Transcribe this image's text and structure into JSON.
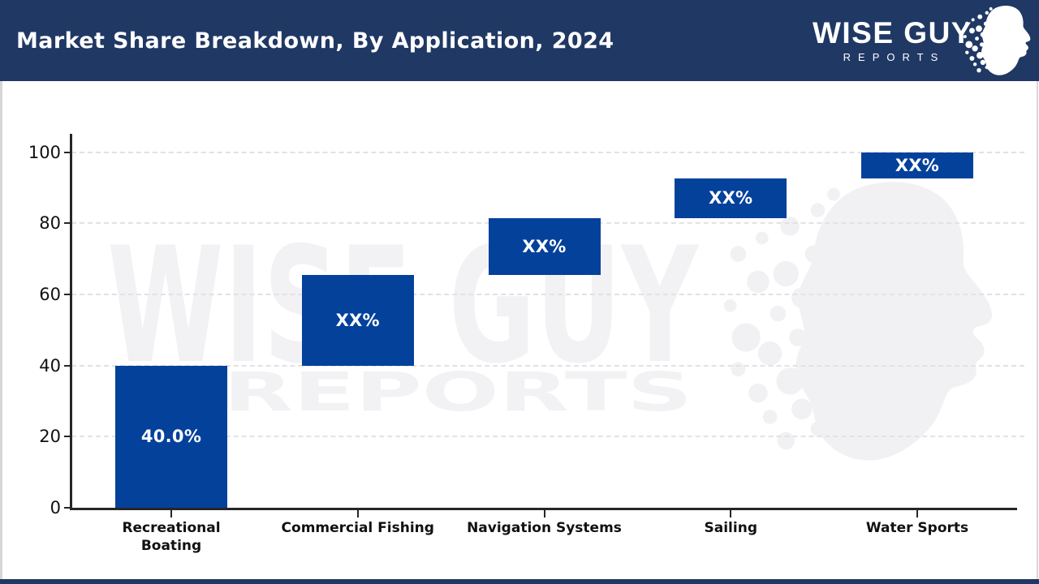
{
  "header": {
    "title": "Market Share Breakdown, By Application, 2024",
    "logo": {
      "line1": "WISE GUY",
      "line2": "REPORTS"
    }
  },
  "watermark": {
    "line1": "WISE GUY",
    "line2": "REPORTS"
  },
  "colors": {
    "header_bg": "#203864",
    "bar_blue": "#04419b",
    "gridline": "#e2e2e6",
    "watermark_gray": "#f1f1f4",
    "axis": "#262626"
  },
  "chart_data": {
    "type": "bar",
    "subtype": "waterfall",
    "title": "Market Share Breakdown, By Application, 2024",
    "categories": [
      "Recreational\nBoating",
      "Commercial Fishing",
      "Navigation Systems",
      "Sailing",
      "Water Sports"
    ],
    "segments": [
      {
        "category": "Recreational Boating",
        "start": 0,
        "end": 40,
        "value": 40,
        "label": "40.0%"
      },
      {
        "category": "Commercial Fishing",
        "start": 40,
        "end": 65.5,
        "value": 25.5,
        "label": "XX%"
      },
      {
        "category": "Navigation Systems",
        "start": 65.5,
        "end": 81.5,
        "value": 16,
        "label": "XX%"
      },
      {
        "category": "Sailing",
        "start": 81.5,
        "end": 92.5,
        "value": 11,
        "label": "XX%"
      },
      {
        "category": "Water Sports",
        "start": 92.5,
        "end": 100,
        "value": 7.5,
        "label": "XX%"
      }
    ],
    "yticks": [
      0,
      20,
      40,
      60,
      80,
      100
    ],
    "ylim": [
      0,
      105
    ],
    "xlabel": "",
    "ylabel": "",
    "grid": "dashed-horizontal",
    "legend": "none",
    "bar_color": "#04419b"
  }
}
